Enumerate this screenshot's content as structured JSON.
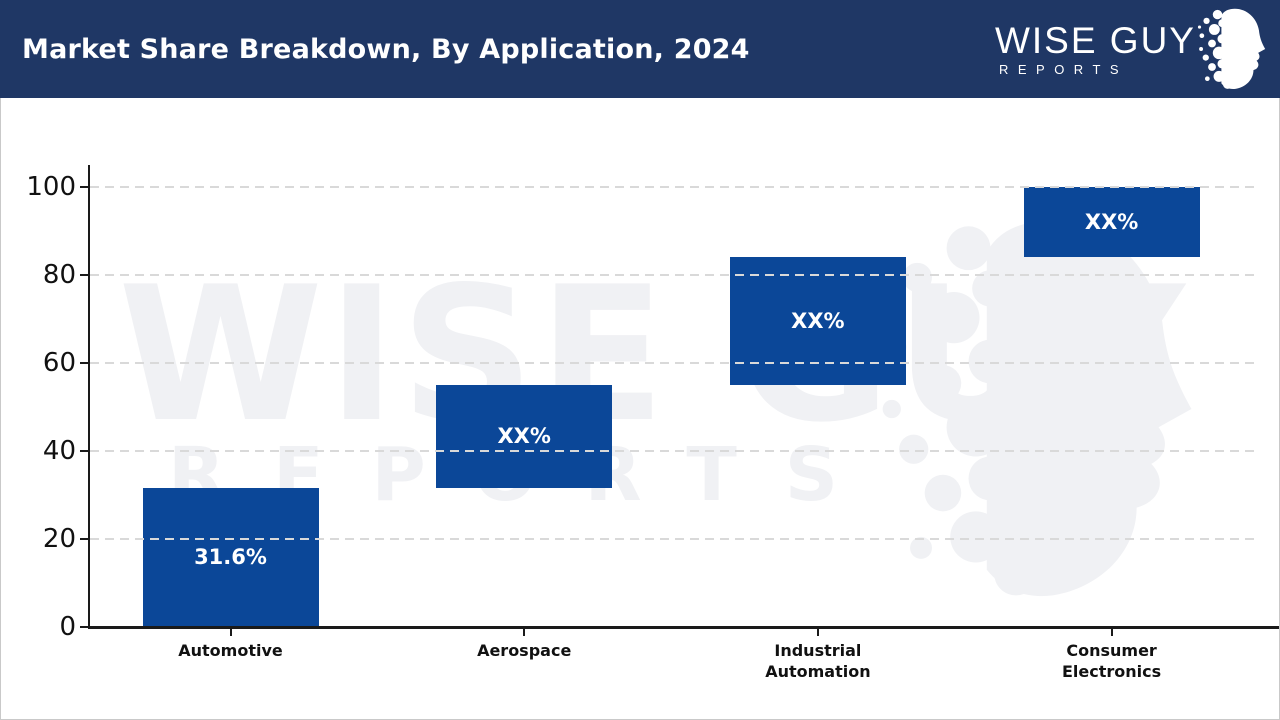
{
  "header": {
    "title": "Market Share Breakdown, By Application, 2024",
    "logo": {
      "line1": "WISE GUY",
      "line2": "REPORTS"
    }
  },
  "watermark": {
    "line1": "WISE GUY",
    "line2": "REPORTS"
  },
  "colors": {
    "header_bg": "#1f3765",
    "bar": "#0b4798",
    "grid": "#d9d9d9",
    "axis": "#1a1a1a",
    "watermark": "#f0f1f4",
    "bar_label": "#ffffff"
  },
  "chart_data": {
    "type": "bar",
    "subtype": "waterfall",
    "title": "Market Share Breakdown, By Application, 2024",
    "categories": [
      "Automotive",
      "Aerospace",
      "Industrial\nAutomation",
      "Consumer\nElectronics"
    ],
    "segments": [
      {
        "category": "Automotive",
        "start": 0,
        "end": 31.6,
        "label": "31.6%"
      },
      {
        "category": "Aerospace",
        "start": 31.6,
        "end": 55,
        "label": "XX%"
      },
      {
        "category": "Industrial Automation",
        "start": 55,
        "end": 84,
        "label": "XX%"
      },
      {
        "category": "Consumer Electronics",
        "start": 84,
        "end": 100,
        "label": "XX%"
      }
    ],
    "values": [
      31.6,
      23.4,
      29,
      16
    ],
    "yticks": [
      0,
      20,
      40,
      60,
      80,
      100
    ],
    "ylim": [
      0,
      105
    ],
    "xlabel": "",
    "ylabel": "",
    "grid": "dashed-horizontal-over-bars",
    "legend": "none",
    "bar_color": "#0b4798",
    "label_color": "#ffffff"
  }
}
